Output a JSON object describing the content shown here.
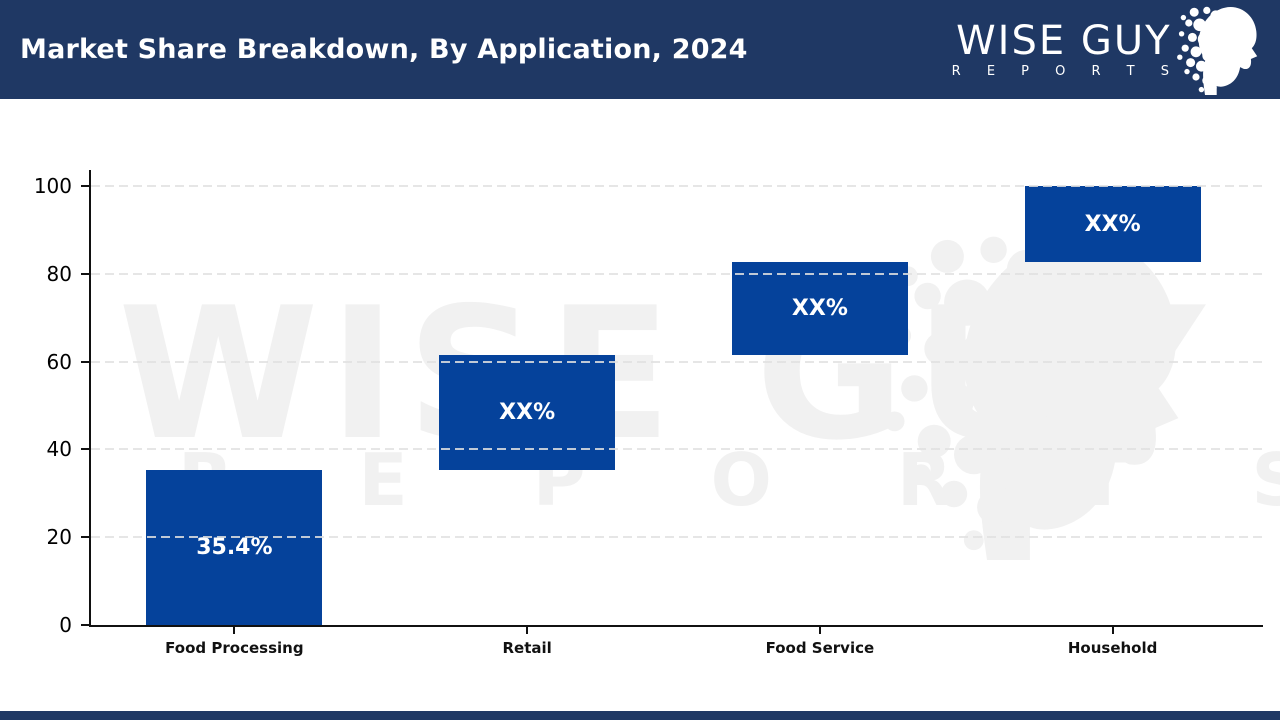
{
  "header": {
    "title": "Market Share Breakdown, By Application, 2024",
    "logo": {
      "line1": "WISE GUY",
      "line2": "R E P O R T S"
    }
  },
  "watermark": {
    "line1": "WISE GUY",
    "line2": "R E P O R T S"
  },
  "colors": {
    "header_bg": "#1f3864",
    "footer_bg": "#1f3864",
    "bar": "#05429b",
    "bar_label": "#ffffff",
    "axis": "#111111",
    "gridline": "#e1e1e1",
    "watermark": "#f1f1f1",
    "title_text": "#ffffff"
  },
  "chart_data": {
    "type": "bar",
    "subtype": "waterfall",
    "title": "Market Share Breakdown, By Application, 2024",
    "categories": [
      "Food Processing",
      "Retail",
      "Food Service",
      "Household"
    ],
    "segments": [
      {
        "category": "Food Processing",
        "start": 0,
        "end": 35.4,
        "label": "35.4%"
      },
      {
        "category": "Retail",
        "start": 35.4,
        "end": 61.4,
        "label": "XX%"
      },
      {
        "category": "Food Service",
        "start": 61.4,
        "end": 82.6,
        "label": "XX%"
      },
      {
        "category": "Household",
        "start": 82.6,
        "end": 100,
        "label": "XX%"
      }
    ],
    "xlabel": "",
    "ylabel": "",
    "ylim": [
      0,
      100
    ],
    "yticks": [
      0,
      20,
      40,
      60,
      80,
      100
    ],
    "grid": "horizontal-dashed",
    "legend": false
  }
}
